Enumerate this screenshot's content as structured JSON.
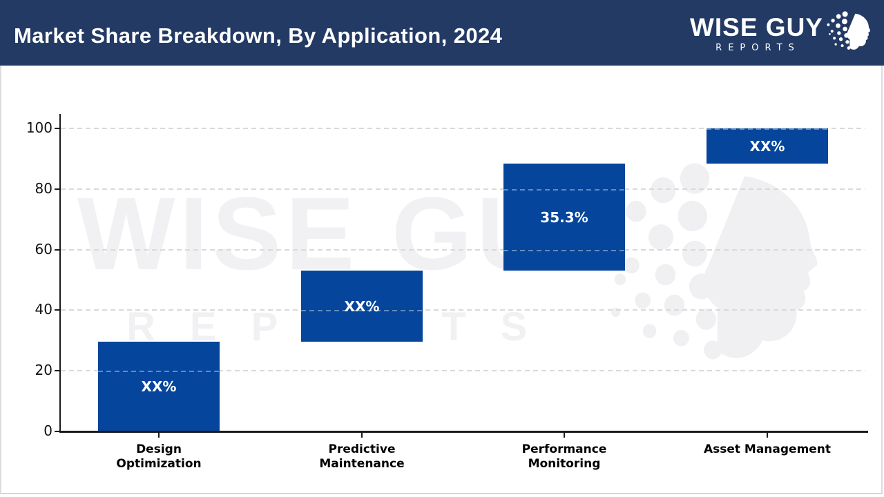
{
  "header": {
    "title": "Market Share Breakdown, By Application, 2024",
    "logo": {
      "name_line": "WISE GUY",
      "sub_line": "REPORTS"
    }
  },
  "watermark": {
    "name_line": "WISE GUY",
    "sub_line": "REPORTS"
  },
  "colors": {
    "header_bg": "#223a64",
    "bar_blue": "#05459c",
    "grid_gray": "#d9d9d9",
    "axis_black": "#1a1a1a",
    "watermark_gray": "#f1f1f4",
    "bar_label_white": "#ffffff"
  },
  "chart_data": {
    "type": "bar",
    "subtype": "waterfall",
    "title": "Market Share Breakdown, By Application, 2024",
    "categories": [
      "Design\nOptimization",
      "Predictive\nMaintenance",
      "Performance\nMonitoring",
      "Asset Management"
    ],
    "series": [
      {
        "name": "Market share (%)",
        "segments": [
          {
            "category": "Design Optimization",
            "start": 0,
            "end": 29.5,
            "label": "XX%"
          },
          {
            "category": "Predictive Maintenance",
            "start": 29.5,
            "end": 53,
            "label": "XX%"
          },
          {
            "category": "Performance Monitoring",
            "start": 53,
            "end": 88.3,
            "label": "35.3%"
          },
          {
            "category": "Asset Management",
            "start": 88.3,
            "end": 100,
            "label": "XX%"
          }
        ]
      }
    ],
    "xlabel": "",
    "ylabel": "",
    "ylim": [
      0,
      100
    ],
    "yticks": [
      0,
      20,
      40,
      60,
      80,
      100
    ],
    "grid": "horizontal-dashed",
    "legend": "none",
    "bar_color": "#05459c",
    "bar_label_color": "#ffffff"
  }
}
